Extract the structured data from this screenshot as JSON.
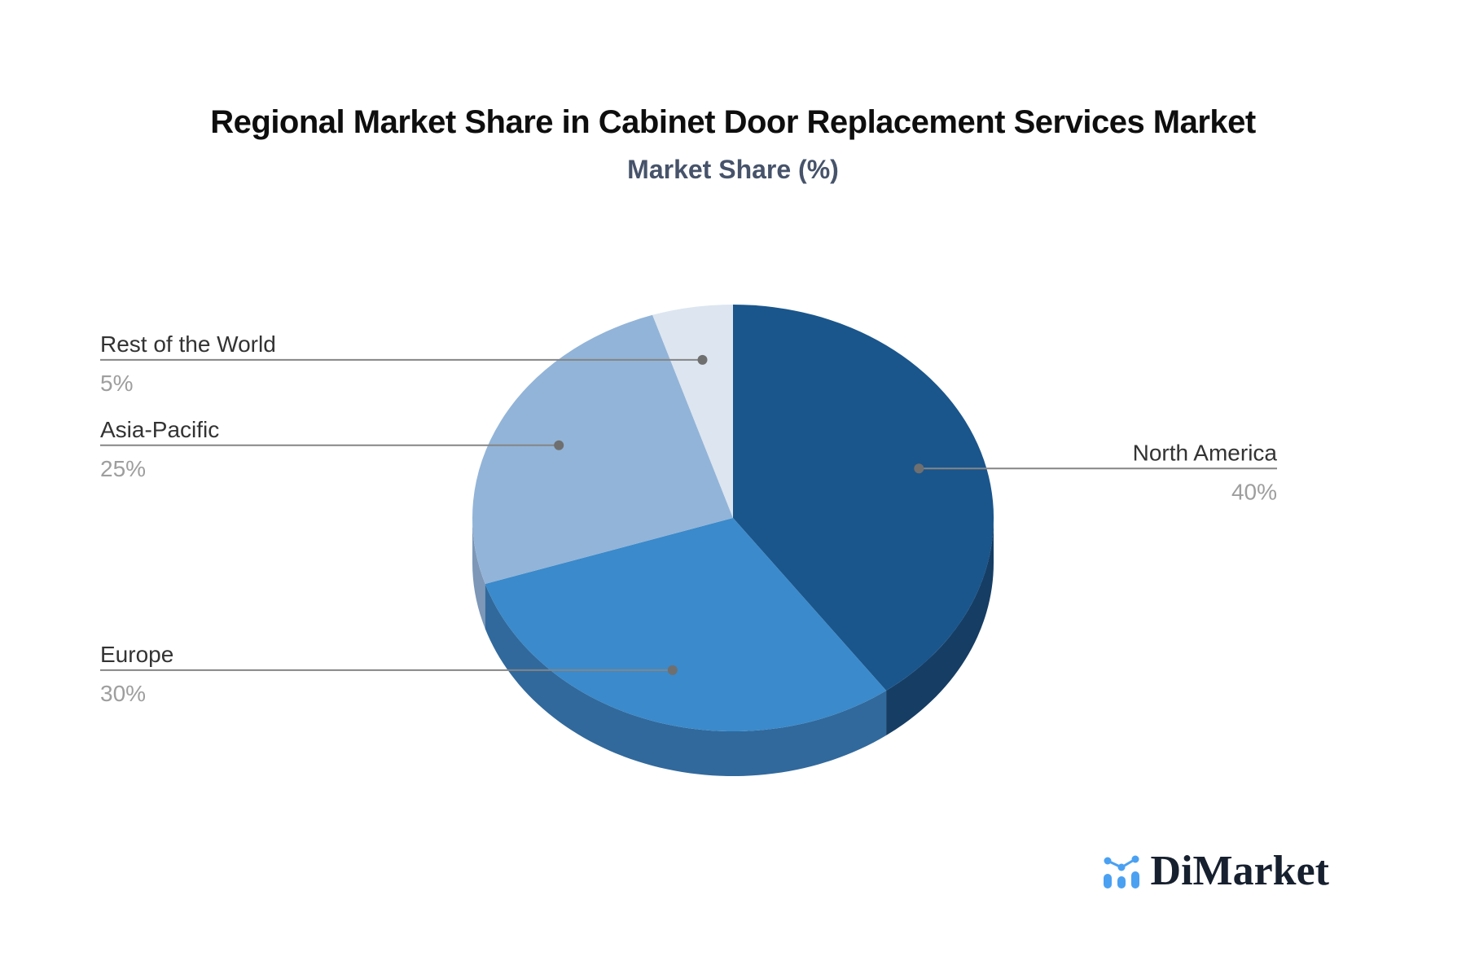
{
  "title": "Regional Market Share in Cabinet Door Replacement Services Market",
  "subtitle": "Market Share (%)",
  "brand": {
    "name": "DiMarket",
    "icon": "bar-line-chart-icon",
    "icon_color": "#4AA1F2",
    "text_color": "#17202F"
  },
  "chart_data": {
    "type": "pie",
    "title": "Regional Market Share in Cabinet Door Replacement Services Market",
    "subtitle": "Market Share (%)",
    "unit": "percent",
    "total": 100,
    "start": "12 o'clock, clockwise",
    "legend": "none; leader-line labels with name above line and percent below",
    "effect": "3d",
    "slices": [
      {
        "label": "North America",
        "value": 40,
        "pct_label": "40%",
        "color": "#1A568C",
        "side_color": "#163D64",
        "label_side": "right"
      },
      {
        "label": "Europe",
        "value": 30,
        "pct_label": "30%",
        "color": "#3B8ACB",
        "side_color": "#31699C",
        "label_side": "left"
      },
      {
        "label": "Asia-Pacific",
        "value": 25,
        "pct_label": "25%",
        "color": "#92B4D8",
        "side_color": "#7C97B7",
        "label_side": "left"
      },
      {
        "label": "Rest of the World",
        "value": 5,
        "pct_label": "5%",
        "color": "#DCE5F0",
        "side_color": "#B9C8DB",
        "label_side": "left"
      }
    ],
    "style": {
      "leader_line_color": "#858585",
      "dot_color": "#6F6F6F",
      "label_color": "#333333",
      "pct_color": "#9E9E9E"
    }
  }
}
